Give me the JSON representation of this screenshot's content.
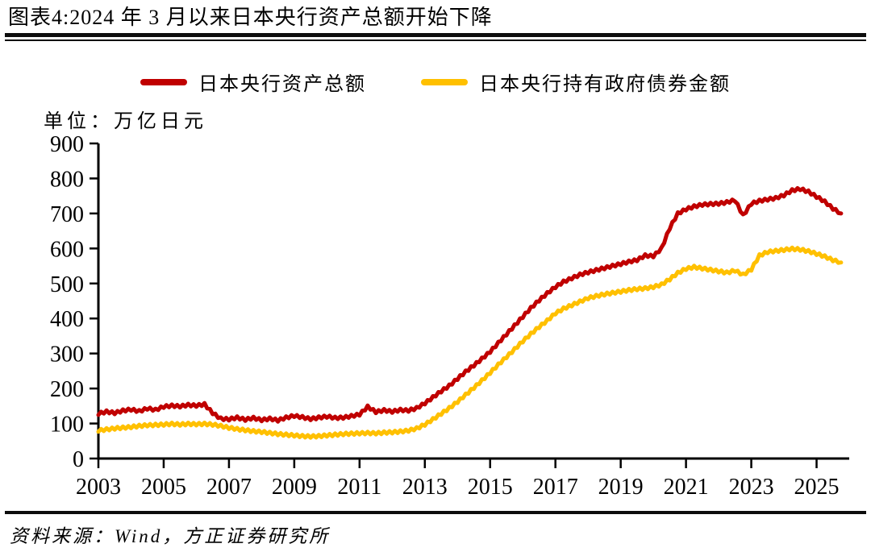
{
  "footer": {
    "source_text": "资料来源：Wind，方正证券研究所"
  },
  "chart_data": {
    "type": "line",
    "title": "图表4:2024 年 3 月以来日本央行资产总额开始下降",
    "unit_label": "单位：万亿日元",
    "xlabel": "",
    "ylabel": "万亿日元",
    "xlim": [
      2003,
      2026
    ],
    "ylim": [
      0,
      900
    ],
    "y_ticks": [
      0,
      100,
      200,
      300,
      400,
      500,
      600,
      700,
      800,
      900
    ],
    "x_ticks": [
      2003,
      2005,
      2007,
      2009,
      2011,
      2013,
      2015,
      2017,
      2019,
      2021,
      2023,
      2025
    ],
    "grid": false,
    "legend_position": "top-center",
    "x": [
      2003,
      2003.25,
      2003.5,
      2003.75,
      2004,
      2004.25,
      2004.5,
      2004.75,
      2005,
      2005.25,
      2005.5,
      2005.75,
      2006,
      2006.25,
      2006.5,
      2006.75,
      2007,
      2007.25,
      2007.5,
      2007.75,
      2008,
      2008.25,
      2008.5,
      2008.75,
      2009,
      2009.25,
      2009.5,
      2009.75,
      2010,
      2010.25,
      2010.5,
      2010.75,
      2011,
      2011.25,
      2011.5,
      2011.75,
      2012,
      2012.25,
      2012.5,
      2012.75,
      2013,
      2013.25,
      2013.5,
      2013.75,
      2014,
      2014.25,
      2014.5,
      2014.75,
      2015,
      2015.25,
      2015.5,
      2015.75,
      2016,
      2016.25,
      2016.5,
      2016.75,
      2017,
      2017.25,
      2017.5,
      2017.75,
      2018,
      2018.25,
      2018.5,
      2018.75,
      2019,
      2019.25,
      2019.5,
      2019.75,
      2020,
      2020.25,
      2020.5,
      2020.75,
      2021,
      2021.25,
      2021.5,
      2021.75,
      2022,
      2022.25,
      2022.5,
      2022.75,
      2023,
      2023.25,
      2023.5,
      2023.75,
      2024,
      2024.25,
      2024.5,
      2024.75,
      2025,
      2025.25,
      2025.5,
      2025.75
    ],
    "series": [
      {
        "name": "日本央行资产总额",
        "color": "#C00000",
        "values": [
          128,
          134,
          130,
          137,
          140,
          135,
          143,
          139,
          148,
          151,
          149,
          153,
          151,
          155,
          130,
          114,
          112,
          117,
          111,
          116,
          110,
          114,
          109,
          117,
          122,
          118,
          113,
          117,
          120,
          116,
          117,
          121,
          126,
          148,
          133,
          138,
          134,
          139,
          137,
          144,
          158,
          175,
          192,
          208,
          228,
          248,
          266,
          285,
          305,
          330,
          355,
          380,
          405,
          430,
          452,
          472,
          490,
          505,
          515,
          525,
          532,
          538,
          544,
          550,
          556,
          562,
          567,
          580,
          578,
          600,
          658,
          700,
          712,
          720,
          725,
          727,
          728,
          732,
          738,
          694,
          728,
          736,
          740,
          744,
          752,
          766,
          770,
          762,
          748,
          734,
          714,
          700
        ]
      },
      {
        "name": "日本央行持有政府债券金额",
        "color": "#FFC000",
        "values": [
          80,
          83,
          86,
          88,
          90,
          93,
          95,
          96,
          97,
          99,
          97,
          99,
          98,
          99,
          97,
          93,
          88,
          84,
          81,
          78,
          76,
          73,
          70,
          68,
          66,
          64,
          63,
          64,
          66,
          68,
          70,
          71,
          72,
          73,
          72,
          74,
          75,
          77,
          80,
          86,
          97,
          112,
          128,
          144,
          162,
          182,
          202,
          223,
          245,
          268,
          290,
          312,
          335,
          356,
          376,
          394,
          415,
          428,
          438,
          448,
          458,
          464,
          469,
          473,
          477,
          481,
          484,
          486,
          490,
          497,
          512,
          530,
          542,
          547,
          543,
          539,
          535,
          531,
          537,
          525,
          540,
          580,
          590,
          593,
          596,
          599,
          597,
          592,
          585,
          577,
          567,
          560
        ]
      }
    ]
  }
}
